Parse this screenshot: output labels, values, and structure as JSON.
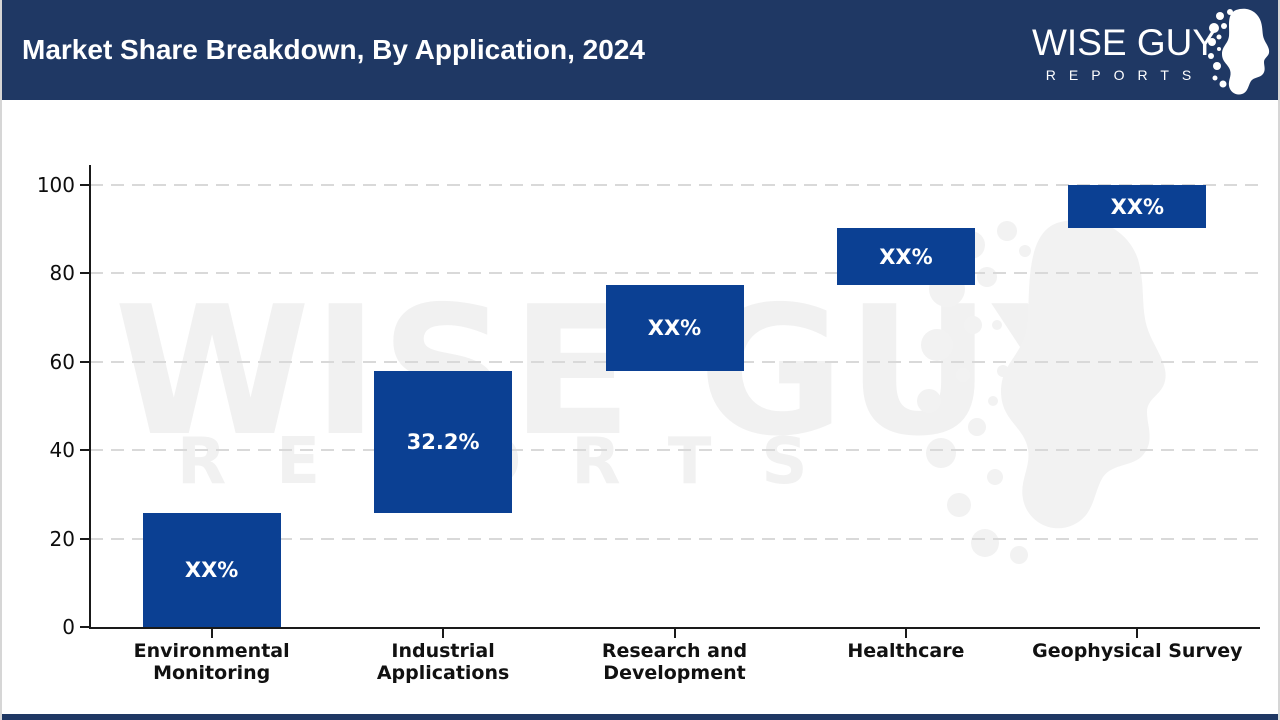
{
  "header": {
    "title": "Market Share Breakdown, By Application, 2024",
    "logo_line1": "WISE GUY",
    "logo_line2": "REPORTS"
  },
  "watermark": {
    "line1": "WISE GUY",
    "line2": "REPORTS"
  },
  "colors": {
    "header_bg": "#1f3864",
    "bar": "#0b4093",
    "grid": "#d9d9d9",
    "axis": "#1a1a1a",
    "watermark": "#f1f1f1"
  },
  "chart_data": {
    "type": "bar",
    "subtype": "waterfall-floating-segments",
    "title": "Market Share Breakdown, By Application, 2024",
    "xlabel": "",
    "ylabel": "",
    "ylim": [
      0,
      105
    ],
    "y_ticks": [
      0,
      20,
      40,
      60,
      80,
      100
    ],
    "grid": "dashed-horizontal",
    "legend": "none",
    "bar_color": "#0b4093",
    "categories": [
      "Environmental Monitoring",
      "Industrial Applications",
      "Research and Development",
      "Healthcare",
      "Geophysical Survey"
    ],
    "category_label_lines": [
      [
        "Environmental",
        "Monitoring"
      ],
      [
        "Industrial",
        "Applications"
      ],
      [
        "Research and",
        "Development"
      ],
      [
        "Healthcare"
      ],
      [
        "Geophysical Survey"
      ]
    ],
    "segments": [
      {
        "category": "Environmental Monitoring",
        "start": 0,
        "end": 25.8,
        "value_label": "XX%"
      },
      {
        "category": "Industrial Applications",
        "start": 25.8,
        "end": 58.0,
        "value_label": "32.2%"
      },
      {
        "category": "Research and Development",
        "start": 58.0,
        "end": 77.3,
        "value_label": "XX%"
      },
      {
        "category": "Healthcare",
        "start": 77.3,
        "end": 90.2,
        "value_label": "XX%"
      },
      {
        "category": "Geophysical Survey",
        "start": 90.2,
        "end": 100,
        "value_label": "XX%"
      }
    ]
  }
}
